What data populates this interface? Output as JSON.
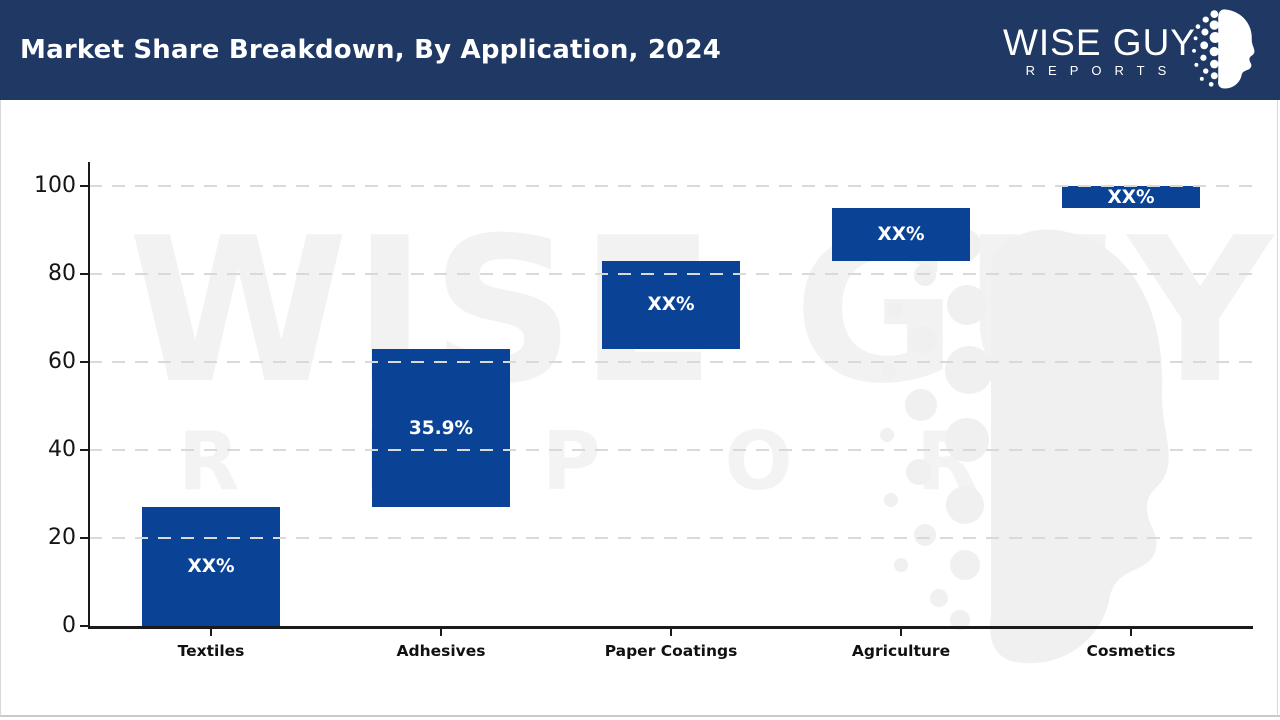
{
  "header": {
    "title": "Market Share Breakdown, By Application, 2024",
    "logo": {
      "name": "WISE GUY",
      "sub": "REPORTS"
    }
  },
  "watermark": {
    "name": "WISE GUY",
    "sub": "R E P O R T S"
  },
  "chart_data": {
    "type": "bar",
    "subtype": "waterfall",
    "title": "Market Share Breakdown, By Application, 2024",
    "categories": [
      "Textiles",
      "Adhesives",
      "Paper Coatings",
      "Agriculture",
      "Cosmetics"
    ],
    "segments": [
      {
        "category": "Textiles",
        "start": 0,
        "end": 27,
        "label": "XX%"
      },
      {
        "category": "Adhesives",
        "start": 27,
        "end": 62.9,
        "label": "35.9%"
      },
      {
        "category": "Paper Coatings",
        "start": 63,
        "end": 83,
        "label": "XX%"
      },
      {
        "category": "Agriculture",
        "start": 83,
        "end": 95,
        "label": "XX%"
      },
      {
        "category": "Cosmetics",
        "start": 95,
        "end": 100,
        "label": "XX%"
      }
    ],
    "xlabel": "",
    "ylabel": "",
    "ylim": [
      0,
      100
    ],
    "yticks": [
      0,
      20,
      40,
      60,
      80,
      100
    ],
    "grid": "horizontal-dashed",
    "legend": "none",
    "bar_label_style": "inside-center-white-bold"
  },
  "colors": {
    "header_bg": "#1f3864",
    "bar": "#0a4296",
    "bar_label": "#ffffff",
    "axis": "#1a1a1a",
    "gridline": "#d9d9d9",
    "watermark": "#f2f2f2",
    "tick_text": "#151515"
  }
}
